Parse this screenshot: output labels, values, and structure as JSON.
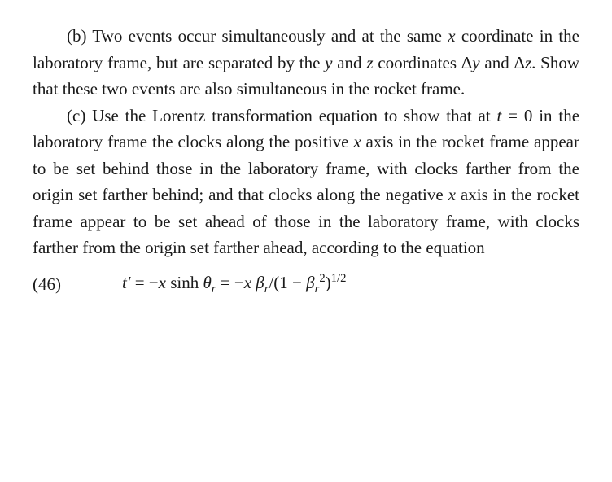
{
  "paragraph_b": {
    "label": "(b)",
    "text_pre": "Two events occur simultaneously and at the same ",
    "var1": "x",
    "text_mid1": " coordinate in the laboratory frame, but are separated by the ",
    "var2": "y",
    "text_mid2": " and ",
    "var3": "z",
    "text_mid3": " coordinates Δ",
    "var4": "y",
    "text_mid4": " and Δ",
    "var5": "z",
    "text_end": ". Show that these two events are also simultaneous in the rocket frame."
  },
  "paragraph_c": {
    "label": "(c)",
    "text_pre": "Use the Lorentz transformation equation to show that at ",
    "var_t": "t",
    "eq_zero": " = 0",
    "text_mid1": " in the laboratory frame the clocks along the positive ",
    "var_x1": "x",
    "text_mid2": " axis in the rocket frame appear to be set behind those in the laboratory frame, with clocks farther from the origin set farther behind; and that clocks along the negative ",
    "var_x2": "x",
    "text_end": " axis in the rocket frame appear to be set ahead of those in the labora­tory frame, with clocks farther from the origin set farther ahead, according to the equation"
  },
  "equation": {
    "number": "(46)",
    "lhs_var": "t′",
    "eq1": " = −",
    "x1": "x",
    "sinh": " sinh ",
    "theta": "θ",
    "theta_sub": "r",
    "eq2": " = −",
    "x2": "x",
    "beta1": " β",
    "beta1_sub": "r",
    "slash": "/(1 − ",
    "beta2": "β",
    "beta2_sub": "r",
    "beta2_sup": "2",
    "close": ")",
    "exp": "1/2"
  },
  "style": {
    "font_size_pt": 21,
    "text_color": "#1a1a1a",
    "background": "#ffffff",
    "font_family": "Georgia, Times New Roman, serif",
    "math_font": "Times New Roman, serif",
    "line_height": 1.55
  }
}
